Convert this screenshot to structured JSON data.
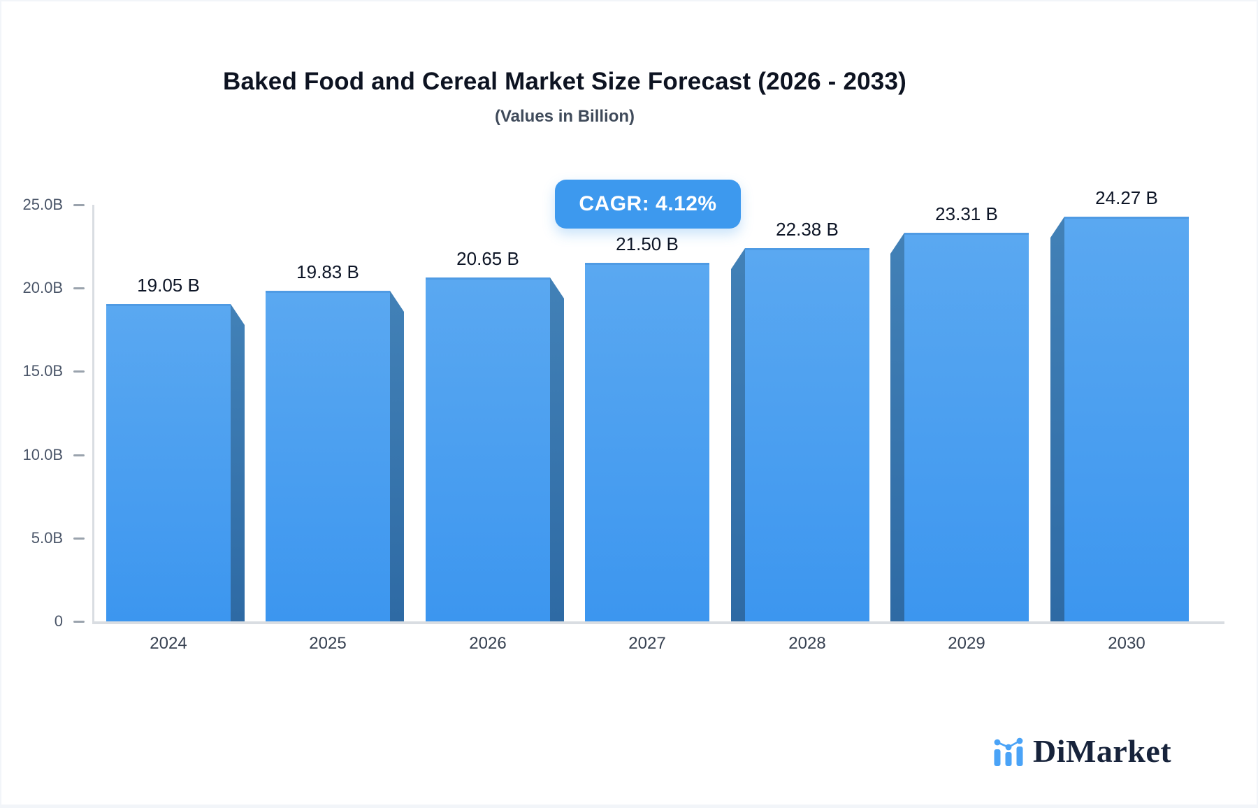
{
  "header": {
    "title": "Baked Food and Cereal Market Size Forecast (2026 - 2033)",
    "subtitle": "(Values in Billion)"
  },
  "cagr_badge": {
    "label": "CAGR: 4.12%",
    "bg_color": "#3d99ee",
    "text_color": "#ffffff"
  },
  "chart_data": {
    "type": "bar",
    "title": "Baked Food and Cereal Market Size Forecast (2026 - 2033)",
    "subtitle": "(Values in Billion)",
    "categories": [
      "2024",
      "2025",
      "2026",
      "2027",
      "2028",
      "2029",
      "2030"
    ],
    "values": [
      19.05,
      19.83,
      20.65,
      21.5,
      22.38,
      23.31,
      24.27
    ],
    "value_labels": [
      "19.05 B",
      "19.83 B",
      "20.65 B",
      "21.50 B",
      "22.38 B",
      "23.31 B",
      "24.27 B"
    ],
    "unit": "Billion",
    "ytick_values": [
      25,
      20,
      15,
      10,
      5,
      0
    ],
    "ytick_labels": [
      "25.0B",
      "20.0B",
      "15.0B",
      "10.0B",
      "5.0B",
      "0"
    ],
    "ylim": [
      0,
      25
    ],
    "grid": false,
    "legend": "none",
    "annotation": "CAGR: 4.12%",
    "bar_color_top": "#5aa8f1",
    "bar_color_bottom": "#3c96ef",
    "bar_side_color": "#35709f",
    "axis_color": "#d9dde2",
    "extrude_side": [
      "right",
      "right",
      "right",
      "none",
      "left",
      "left",
      "left"
    ]
  },
  "logo": {
    "text": "DiMarket",
    "icon": "mini-bar-chart-icon",
    "text_color": "#17233b",
    "accent_color": "#4aa3f7"
  }
}
